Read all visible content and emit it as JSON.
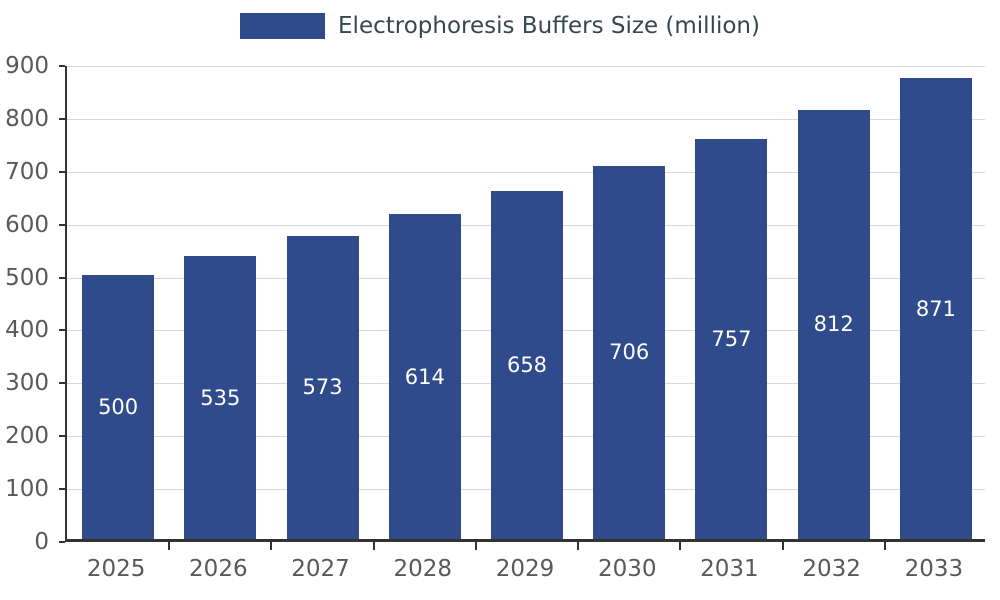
{
  "chart_data": {
    "type": "bar",
    "title": "",
    "legend": {
      "label": "Electrophoresis Buffers Size (million)",
      "position": "top"
    },
    "categories": [
      "2025",
      "2026",
      "2027",
      "2028",
      "2029",
      "2030",
      "2031",
      "2032",
      "2033"
    ],
    "series": [
      {
        "name": "Electrophoresis Buffers Size (million)",
        "values": [
          500,
          535,
          573,
          614,
          658,
          706,
          757,
          812,
          871
        ]
      }
    ],
    "xlabel": "",
    "ylabel": "",
    "ylim": [
      0,
      900
    ],
    "ytick_interval": 100,
    "yticks": [
      0,
      100,
      200,
      300,
      400,
      500,
      600,
      700,
      800,
      900
    ],
    "grid": true,
    "bar_color": "#2f4b8b",
    "value_label_color": "#ffffff",
    "axis_color": "#333333",
    "gridline_color": "#d9d9d9",
    "tick_label_color": "#595959"
  }
}
